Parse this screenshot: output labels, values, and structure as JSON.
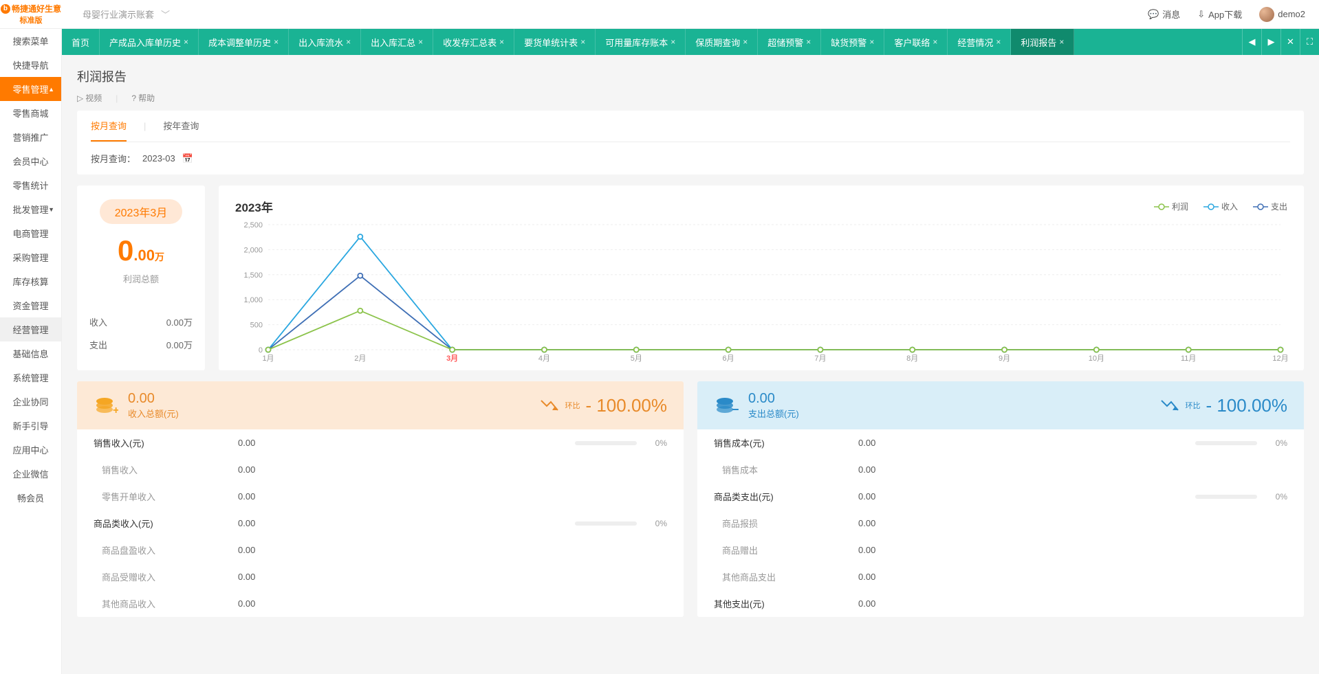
{
  "logo": {
    "brand": "畅捷通好生意",
    "edition": "标准版"
  },
  "account_selector": "母婴行业演示账套",
  "header_right": {
    "message": "消息",
    "app_download": "App下载",
    "user": "demo2"
  },
  "tabs": [
    {
      "label": "首页",
      "closable": false
    },
    {
      "label": "产成品入库单历史",
      "closable": true
    },
    {
      "label": "成本调整单历史",
      "closable": true
    },
    {
      "label": "出入库流水",
      "closable": true
    },
    {
      "label": "出入库汇总",
      "closable": true
    },
    {
      "label": "收发存汇总表",
      "closable": true
    },
    {
      "label": "要货单统计表",
      "closable": true
    },
    {
      "label": "可用量库存账本",
      "closable": true
    },
    {
      "label": "保质期查询",
      "closable": true
    },
    {
      "label": "超储预警",
      "closable": true
    },
    {
      "label": "缺货预警",
      "closable": true
    },
    {
      "label": "客户联络",
      "closable": true
    },
    {
      "label": "经营情况",
      "closable": true
    },
    {
      "label": "利润报告",
      "closable": true
    }
  ],
  "active_tab_index": 13,
  "sidebar": [
    {
      "label": "搜索菜单"
    },
    {
      "label": "快捷导航"
    },
    {
      "label": "零售管理",
      "active": true,
      "caret": "▲"
    },
    {
      "label": "零售商城",
      "indent": true
    },
    {
      "label": "营销推广",
      "indent": true
    },
    {
      "label": "会员中心",
      "indent": true
    },
    {
      "label": "零售统计",
      "indent": true
    },
    {
      "label": "批发管理",
      "caret": "▼"
    },
    {
      "label": "电商管理"
    },
    {
      "label": "采购管理"
    },
    {
      "label": "库存核算"
    },
    {
      "label": "资金管理"
    },
    {
      "label": "经营管理",
      "sub_active": true
    },
    {
      "label": "基础信息"
    },
    {
      "label": "系统管理"
    },
    {
      "label": "企业协同"
    },
    {
      "label": "新手引导"
    },
    {
      "label": "应用中心"
    },
    {
      "label": "企业微信"
    },
    {
      "label": "畅会员"
    }
  ],
  "page_title": "利润报告",
  "help": {
    "video": "视频",
    "help": "帮助"
  },
  "query_tabs": {
    "month": "按月查询",
    "year": "按年查询",
    "active": "month"
  },
  "query_row": {
    "label": "按月查询：",
    "value": "2023-03"
  },
  "summary": {
    "period": "2023年3月",
    "big_int": "0",
    "big_dec": ".00",
    "big_unit": "万",
    "big_label": "利润总额",
    "kv": [
      {
        "k": "收入",
        "v": "0.00万"
      },
      {
        "k": "支出",
        "v": "0.00万"
      }
    ]
  },
  "chart": {
    "title": "2023年",
    "legend": [
      {
        "label": "利润",
        "color": "#8bc34a"
      },
      {
        "label": "收入",
        "color": "#2aa7e0"
      },
      {
        "label": "支出",
        "color": "#3f6fb5"
      }
    ],
    "y_axis": {
      "min": 0,
      "max": 2500,
      "step": 500,
      "ticks": [
        "0",
        "500",
        "1,000",
        "1,500",
        "2,000",
        "2,500"
      ]
    },
    "x_axis": [
      "1月",
      "2月",
      "3月",
      "4月",
      "5月",
      "6月",
      "7月",
      "8月",
      "9月",
      "10月",
      "11月",
      "12月"
    ],
    "highlight_x_index": 2,
    "series": {
      "profit": [
        0,
        780,
        0,
        0,
        0,
        0,
        0,
        0,
        0,
        0,
        0,
        0
      ],
      "income": [
        0,
        2260,
        0,
        0,
        0,
        0,
        0,
        0,
        0,
        0,
        0,
        0
      ],
      "expense": [
        0,
        1480,
        0,
        0,
        0,
        0,
        0,
        0,
        0,
        0,
        0,
        0
      ]
    },
    "colors": {
      "profit": "#8bc34a",
      "income": "#2aa7e0",
      "expense": "#3f6fb5",
      "grid": "#eeeeee",
      "axis": "#cccccc",
      "label": "#999999"
    }
  },
  "metric_left": {
    "value": "0.00",
    "sub": "收入总额(元)",
    "trend_label": "环比",
    "pct": "- 100.00%",
    "rows": [
      {
        "type": "main",
        "label": "销售收入(元)",
        "val": "0.00",
        "pct": "0%"
      },
      {
        "type": "sub",
        "label": "销售收入",
        "val": "0.00"
      },
      {
        "type": "sub",
        "label": "零售开单收入",
        "val": "0.00"
      },
      {
        "type": "main",
        "label": "商品类收入(元)",
        "val": "0.00",
        "pct": "0%"
      },
      {
        "type": "sub",
        "label": "商品盘盈收入",
        "val": "0.00"
      },
      {
        "type": "sub",
        "label": "商品受赠收入",
        "val": "0.00"
      },
      {
        "type": "sub",
        "label": "其他商品收入",
        "val": "0.00"
      }
    ]
  },
  "metric_right": {
    "value": "0.00",
    "sub": "支出总额(元)",
    "trend_label": "环比",
    "pct": "- 100.00%",
    "rows": [
      {
        "type": "main",
        "label": "销售成本(元)",
        "val": "0.00",
        "pct": "0%"
      },
      {
        "type": "sub",
        "label": "销售成本",
        "val": "0.00"
      },
      {
        "type": "main",
        "label": "商品类支出(元)",
        "val": "0.00",
        "pct": "0%"
      },
      {
        "type": "sub",
        "label": "商品报损",
        "val": "0.00"
      },
      {
        "type": "sub",
        "label": "商品赠出",
        "val": "0.00"
      },
      {
        "type": "sub",
        "label": "其他商品支出",
        "val": "0.00"
      },
      {
        "type": "main",
        "label": "其他支出(元)",
        "val": "0.00"
      }
    ]
  }
}
